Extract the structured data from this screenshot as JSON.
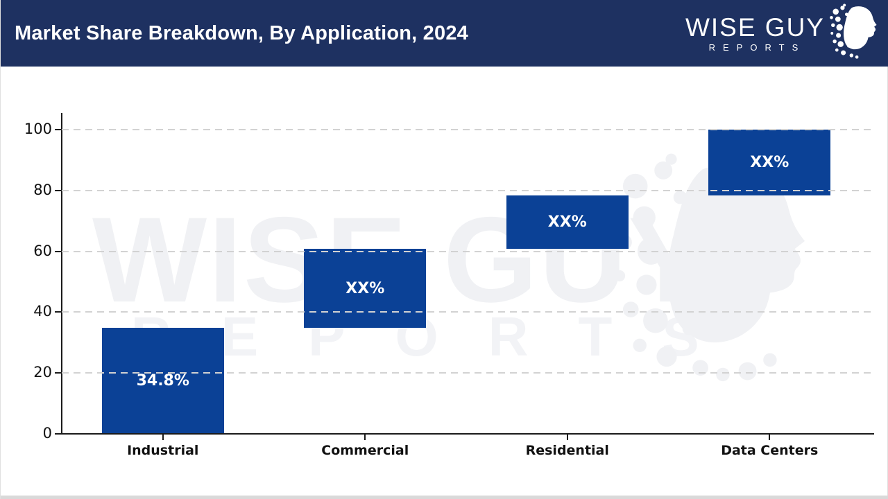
{
  "header": {
    "title": "Market Share Breakdown, By Application, 2024",
    "logo": {
      "line1": "WISE GUY",
      "line2": "REPORTS"
    }
  },
  "watermark": {
    "line1": "WISE GUY",
    "line2": "REPORTS"
  },
  "colors": {
    "header_bg": "#1e3161",
    "bar": "#0b4196",
    "grid": "#d2d2d2",
    "axis": "#1a1a1a",
    "watermark": "#f0f1f4",
    "label_on_bar": "#ffffff"
  },
  "chart_data": {
    "type": "bar",
    "subtype": "floating-waterfall",
    "title": "Market Share Breakdown, By Application, 2024",
    "categories": [
      "Industrial",
      "Commercial",
      "Residential",
      "Data Centers"
    ],
    "segments": [
      {
        "category": "Industrial",
        "start": 0,
        "end": 34.8,
        "label": "34.8%"
      },
      {
        "category": "Commercial",
        "start": 34.8,
        "end": 60.8,
        "label": "XX%"
      },
      {
        "category": "Residential",
        "start": 60.8,
        "end": 78.3,
        "label": "XX%"
      },
      {
        "category": "Data Centers",
        "start": 78.3,
        "end": 100,
        "label": "XX%"
      }
    ],
    "unit": "%",
    "ylim": [
      0,
      100
    ],
    "yticks": [
      0,
      20,
      40,
      60,
      80,
      100
    ],
    "grid": "horizontal-dashed",
    "legend": "none",
    "xlabel": "",
    "ylabel": ""
  }
}
